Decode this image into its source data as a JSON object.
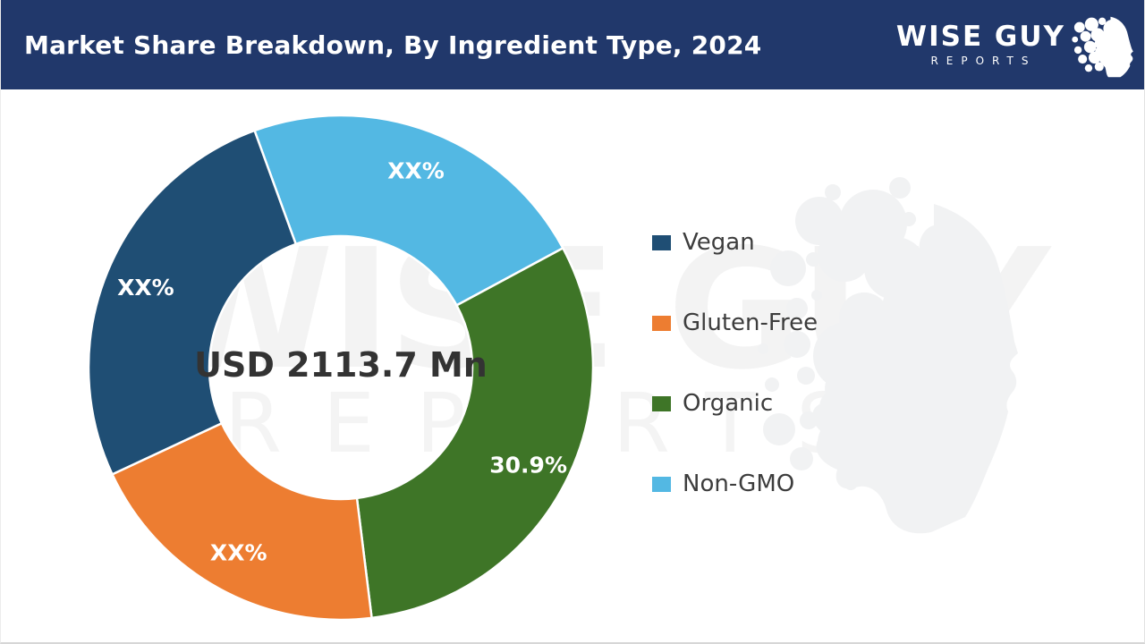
{
  "header": {
    "title": "Market Share Breakdown, By Ingredient Type, 2024",
    "bg_color": "#21386B",
    "logo": {
      "line1": "WISE GUY",
      "line2": "REPORTS"
    }
  },
  "watermark": {
    "line1": "WISE GUY",
    "line2": "REPORTS",
    "color": "#f3f3f3"
  },
  "chart_data": {
    "type": "pie",
    "donut": true,
    "title": "Market Share Breakdown, By Ingredient Type, 2024",
    "center_label": "USD 2113.7 Mn",
    "legend_position": "right",
    "start_angle_deg": -20,
    "inner_radius_ratio": 0.52,
    "draw_order": [
      "Non-GMO",
      "Organic",
      "Gluten-Free",
      "Vegan"
    ],
    "segments": [
      {
        "name": "Vegan",
        "value_pct": 26.4,
        "display_label": "XX%",
        "color": "#1F4E74"
      },
      {
        "name": "Gluten-Free",
        "value_pct": 20.0,
        "display_label": "XX%",
        "color": "#ED7D31"
      },
      {
        "name": "Organic",
        "value_pct": 30.9,
        "display_label": "30.9%",
        "color": "#3E7527"
      },
      {
        "name": "Non-GMO",
        "value_pct": 22.7,
        "display_label": "XX%",
        "color": "#53B8E3"
      }
    ]
  }
}
